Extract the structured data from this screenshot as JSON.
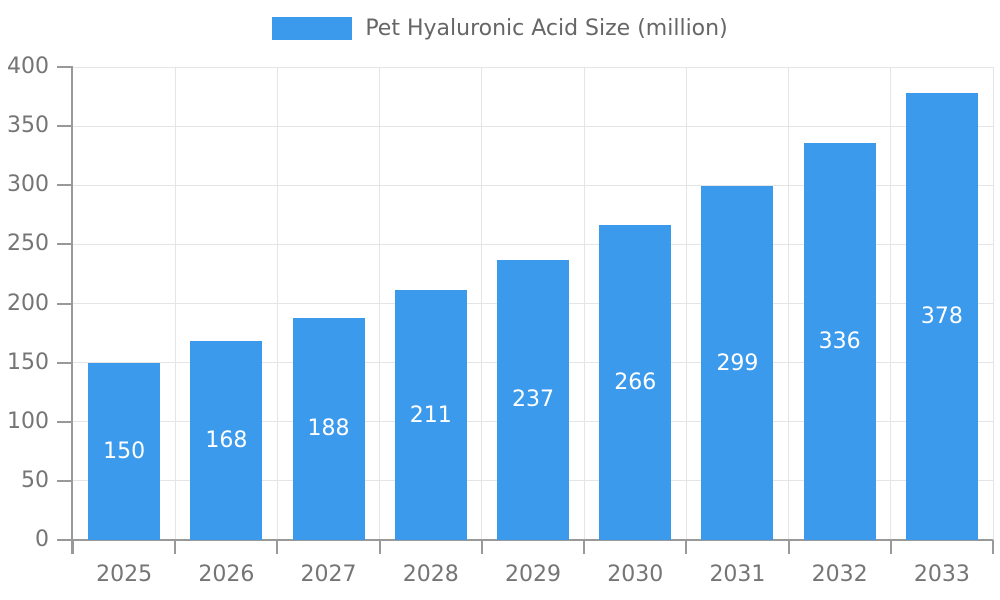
{
  "chart_data": {
    "type": "bar",
    "title": "Pet Hyaluronic Acid Size (million)",
    "categories": [
      "2025",
      "2026",
      "2027",
      "2028",
      "2029",
      "2030",
      "2031",
      "2032",
      "2033"
    ],
    "values": [
      150,
      168,
      188,
      211,
      237,
      266,
      299,
      336,
      378
    ],
    "xlabel": "",
    "ylabel": "",
    "ylim": [
      0,
      400
    ],
    "yticks": [
      0,
      50,
      100,
      150,
      200,
      250,
      300,
      350,
      400
    ],
    "grid": true,
    "legend_position": "top",
    "value_labels": "centered-inside-white"
  },
  "legend": {
    "label": "Pet Hyaluronic Acid Size (million)"
  },
  "colors": {
    "bar": "#3B9AEC",
    "grid": "#E5E5E5",
    "axis": "#999999",
    "tick_label": "#757575",
    "legend_text": "#666666",
    "value_label": "#FFFFFF",
    "background": "#FFFFFF"
  }
}
